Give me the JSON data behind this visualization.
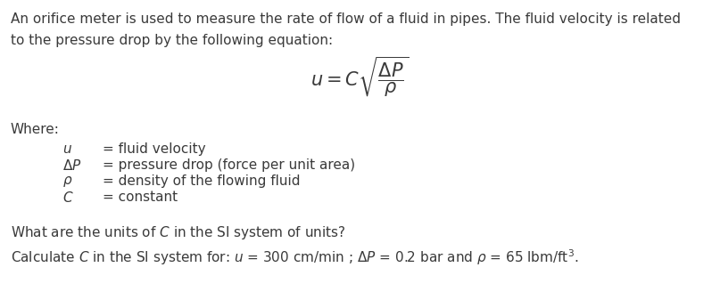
{
  "background_color": "#ffffff",
  "text_color": "#3a3a3a",
  "line1": "An orifice meter is used to measure the rate of flow of a fluid in pipes. The fluid velocity is related",
  "line2": "to the pressure drop by the following equation:",
  "equation": "$u = C\\sqrt{\\dfrac{\\Delta P}{\\rho}}$",
  "where_label": "Where:",
  "def_syms": [
    "$u$",
    "$\\Delta P$",
    "$\\rho$",
    "$C$"
  ],
  "def_texts": [
    "= fluid velocity",
    "= pressure drop (force per unit area)",
    "= density of the flowing fluid",
    "= constant"
  ],
  "question": "What are the units of $C$ in the SI system of units?",
  "calc_parts": [
    "Calculate $C$ in the SI system for: $u$ = 300 cm/min ; $\\Delta P$ = 0.2 bar and $\\rho$ = 65 lbm/ft$^3$."
  ],
  "fontsize_body": 11.0,
  "fontsize_eq": 15,
  "fontsize_def": 11.0
}
